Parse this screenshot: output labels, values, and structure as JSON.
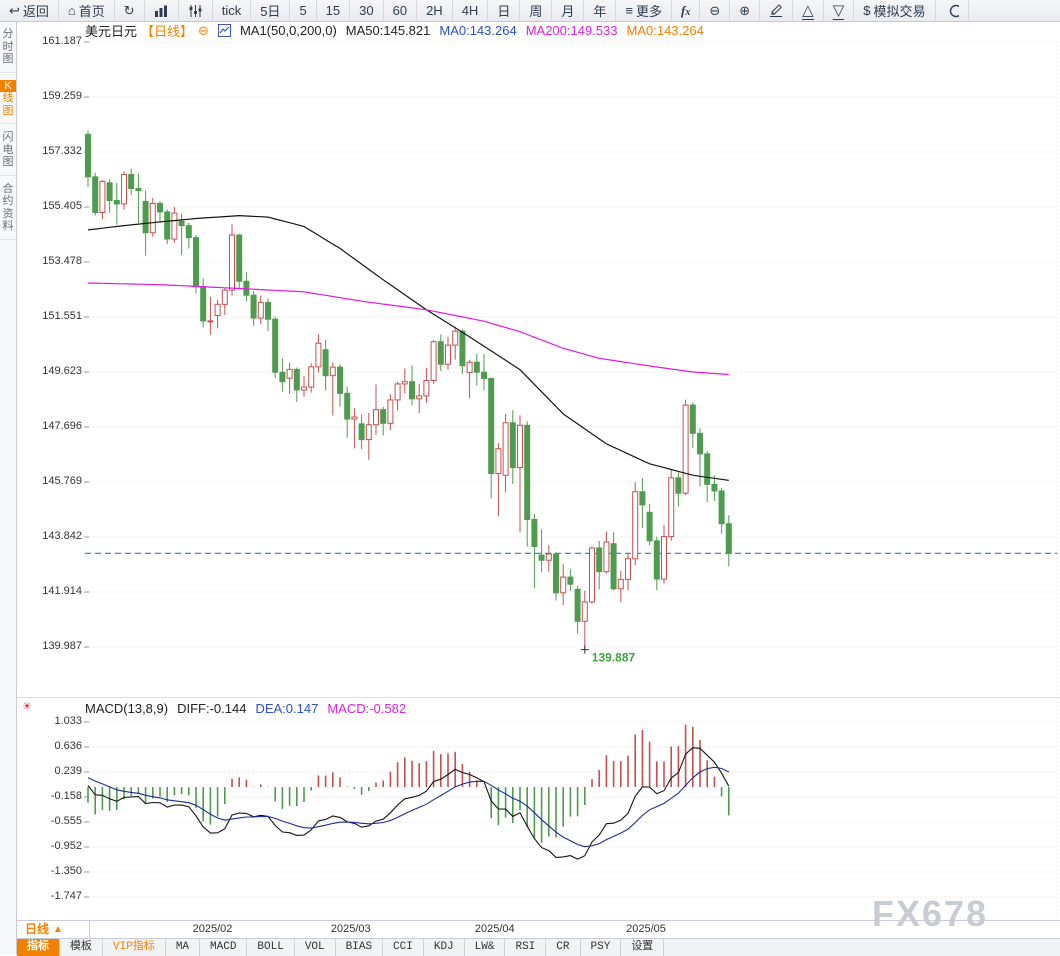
{
  "toolbar": {
    "items": [
      {
        "name": "back-button",
        "icon": "back-icon",
        "label": "返回"
      },
      {
        "name": "home-button",
        "icon": "home-icon",
        "label": "首页"
      },
      {
        "name": "refresh-button",
        "icon": "refresh-icon",
        "label": ""
      },
      {
        "name": "chart-type-button",
        "icon": "bar-chart-icon",
        "label": ""
      },
      {
        "name": "adjust-button",
        "icon": "sliders-icon",
        "label": ""
      },
      {
        "name": "tf-tick-button",
        "label": "tick"
      },
      {
        "name": "tf-5d-button",
        "label": "5日"
      },
      {
        "name": "tf-5-button",
        "label": "5"
      },
      {
        "name": "tf-15-button",
        "label": "15"
      },
      {
        "name": "tf-30-button",
        "label": "30"
      },
      {
        "name": "tf-60-button",
        "label": "60"
      },
      {
        "name": "tf-2h-button",
        "label": "2H"
      },
      {
        "name": "tf-4h-button",
        "label": "4H"
      },
      {
        "name": "tf-day-button",
        "label": "日"
      },
      {
        "name": "tf-week-button",
        "label": "周"
      },
      {
        "name": "tf-month-button",
        "label": "月"
      },
      {
        "name": "tf-year-button",
        "label": "年"
      },
      {
        "name": "more-button",
        "icon": "menu-icon",
        "label": "更多"
      },
      {
        "name": "formula-button",
        "icon": "fx-icon",
        "label": ""
      },
      {
        "name": "zoom-out-button",
        "icon": "zoom-out-icon",
        "label": ""
      },
      {
        "name": "zoom-in-button",
        "icon": "zoom-in-icon",
        "label": ""
      },
      {
        "name": "draw-button",
        "icon": "pencil-icon",
        "label": ""
      },
      {
        "name": "order-up-button",
        "icon": "triangle-up-icon",
        "label": ""
      },
      {
        "name": "order-down-button",
        "icon": "triangle-down-icon",
        "label": ""
      },
      {
        "name": "sim-trading-button",
        "icon": "dollar-icon",
        "label": "模拟交易"
      },
      {
        "name": "edge-partial-button",
        "icon": "partial-icon",
        "label": ""
      }
    ]
  },
  "sidebar": {
    "items": [
      {
        "name": "sidebar-item-timeline",
        "label": "分时图",
        "active": false
      },
      {
        "name": "sidebar-item-kline",
        "label": "K线图",
        "active": true
      },
      {
        "name": "sidebar-item-lightning",
        "label": "闪电图",
        "active": false
      },
      {
        "name": "sidebar-item-contract",
        "label": "合约资料",
        "active": false
      }
    ]
  },
  "chart_header": {
    "symbol": "美元日元",
    "period_tag": "【日线】",
    "collapse_icon": "⊖",
    "ma_settings": "MA1(50,0,200,0)",
    "ma50": "MA50:145.821",
    "ma0_blue": "MA0:143.264",
    "ma200": "MA200:149.533",
    "ma0_orange": "MA0:143.264"
  },
  "macd_header": {
    "settings_icon": "☀",
    "title": "MACD(13,8,9)",
    "diff": "DIFF:-0.144",
    "dea": "DEA:0.147",
    "macd": "MACD:-0.582"
  },
  "bottom": {
    "period_selector": "日线",
    "period_arrow": "▲",
    "tabs": [
      {
        "name": "tab-indicator",
        "label": "指标",
        "state": "active"
      },
      {
        "name": "tab-template",
        "label": "模板",
        "state": ""
      },
      {
        "name": "tab-vip",
        "label": "VIP指标",
        "state": "vip"
      },
      {
        "name": "tab-ma",
        "label": "MA",
        "state": ""
      },
      {
        "name": "tab-macd",
        "label": "MACD",
        "state": ""
      },
      {
        "name": "tab-boll",
        "label": "BOLL",
        "state": ""
      },
      {
        "name": "tab-vol",
        "label": "VOL",
        "state": ""
      },
      {
        "name": "tab-bias",
        "label": "BIAS",
        "state": ""
      },
      {
        "name": "tab-cci",
        "label": "CCI",
        "state": ""
      },
      {
        "name": "tab-kdj",
        "label": "KDJ",
        "state": ""
      },
      {
        "name": "tab-lwr",
        "label": "LW&",
        "state": ""
      },
      {
        "name": "tab-rsi",
        "label": "RSI",
        "state": ""
      },
      {
        "name": "tab-cr",
        "label": "CR",
        "state": ""
      },
      {
        "name": "tab-psy",
        "label": "PSY",
        "state": ""
      },
      {
        "name": "tab-settings",
        "label": "设置",
        "state": ""
      }
    ]
  },
  "watermark": "FX678",
  "chart_data": {
    "type": "candlestick",
    "title": "美元日元 日线 (USD/JPY daily)",
    "price_axis_labels": [
      161.187,
      159.259,
      157.332,
      155.405,
      153.478,
      151.551,
      149.623,
      147.696,
      145.769,
      143.842,
      141.914,
      139.987
    ],
    "current_price": 143.264,
    "low_marker": {
      "index": 69,
      "value": 139.887,
      "label": "139.887"
    },
    "x_labels": [
      {
        "text": "2025/02",
        "index": 17.3
      },
      {
        "text": "2025/03",
        "index": 36.5
      },
      {
        "text": "2025/04",
        "index": 56.5
      },
      {
        "text": "2025/05",
        "index": 77.5
      }
    ],
    "ohlc": [
      [
        157.95,
        158.08,
        156.1,
        156.46
      ],
      [
        156.46,
        156.6,
        155.1,
        155.21
      ],
      [
        155.21,
        156.35,
        154.98,
        156.3
      ],
      [
        156.25,
        156.37,
        155.2,
        155.63
      ],
      [
        155.63,
        156.25,
        154.78,
        155.51
      ],
      [
        155.51,
        156.66,
        155.31,
        156.54
      ],
      [
        156.54,
        156.75,
        155.82,
        156.05
      ],
      [
        156.05,
        156.57,
        154.84,
        155.98
      ],
      [
        155.6,
        155.98,
        153.7,
        154.5
      ],
      [
        154.5,
        155.72,
        154.36,
        155.53
      ],
      [
        155.53,
        155.61,
        154.91,
        155.23
      ],
      [
        155.23,
        155.32,
        154.1,
        154.28
      ],
      [
        154.28,
        155.4,
        154.15,
        155.19
      ],
      [
        154.9,
        155.17,
        153.72,
        154.75
      ],
      [
        154.75,
        154.85,
        153.95,
        154.33
      ],
      [
        154.33,
        154.42,
        152.38,
        152.61
      ],
      [
        152.61,
        152.9,
        151.18,
        151.41
      ],
      [
        151.41,
        152.25,
        150.93,
        151.41
      ],
      [
        151.6,
        152.15,
        151.15,
        151.99
      ],
      [
        151.99,
        152.55,
        151.62,
        152.49
      ],
      [
        152.49,
        154.8,
        152.3,
        154.42
      ],
      [
        154.42,
        154.46,
        152.55,
        152.8
      ],
      [
        152.8,
        153.13,
        152.1,
        152.31
      ],
      [
        152.31,
        152.45,
        151.24,
        151.51
      ],
      [
        151.51,
        152.3,
        151.3,
        152.06
      ],
      [
        152.06,
        152.2,
        151.05,
        151.47
      ],
      [
        151.47,
        151.56,
        149.4,
        149.61
      ],
      [
        149.61,
        150.1,
        148.93,
        149.28
      ],
      [
        149.4,
        149.95,
        148.85,
        149.71
      ],
      [
        149.71,
        149.78,
        148.57,
        148.99
      ],
      [
        148.99,
        149.48,
        148.75,
        149.09
      ],
      [
        149.09,
        149.92,
        148.9,
        149.8
      ],
      [
        149.8,
        150.95,
        149.6,
        150.63
      ],
      [
        150.4,
        150.75,
        148.98,
        149.49
      ],
      [
        149.49,
        149.95,
        148.09,
        149.79
      ],
      [
        149.79,
        149.89,
        148.4,
        148.87
      ],
      [
        148.87,
        149.1,
        147.31,
        147.97
      ],
      [
        147.97,
        148.35,
        146.94,
        148.04
      ],
      [
        147.8,
        148.13,
        146.92,
        147.25
      ],
      [
        147.25,
        148.18,
        146.54,
        147.77
      ],
      [
        147.77,
        149.18,
        147.42,
        148.3
      ],
      [
        148.3,
        148.39,
        147.4,
        147.82
      ],
      [
        147.82,
        148.84,
        147.58,
        148.64
      ],
      [
        148.64,
        149.27,
        148.27,
        149.2
      ],
      [
        149.2,
        149.75,
        148.87,
        149.28
      ],
      [
        149.28,
        149.85,
        148.45,
        148.68
      ],
      [
        148.68,
        149.2,
        148.18,
        148.78
      ],
      [
        148.78,
        149.77,
        148.53,
        149.32
      ],
      [
        149.32,
        150.74,
        149.2,
        150.68
      ],
      [
        150.68,
        150.94,
        149.65,
        149.89
      ],
      [
        149.89,
        150.85,
        149.7,
        150.56
      ],
      [
        150.56,
        151.21,
        150.05,
        151.05
      ],
      [
        151.05,
        151.12,
        149.55,
        149.84
      ],
      [
        149.6,
        150.05,
        148.7,
        149.96
      ],
      [
        149.96,
        150.25,
        149.14,
        149.61
      ],
      [
        149.61,
        150.25,
        148.98,
        149.39
      ],
      [
        149.39,
        149.42,
        145.19,
        146.06
      ],
      [
        146.06,
        147.12,
        144.56,
        146.93
      ],
      [
        146.0,
        148.15,
        145.4,
        147.84
      ],
      [
        147.84,
        148.28,
        145.7,
        146.27
      ],
      [
        146.27,
        148.1,
        144.0,
        147.75
      ],
      [
        147.75,
        147.9,
        143.5,
        144.45
      ],
      [
        144.45,
        144.65,
        142.05,
        143.5
      ],
      [
        143.2,
        144.1,
        142.6,
        143.02
      ],
      [
        143.02,
        143.55,
        142.62,
        143.24
      ],
      [
        143.24,
        143.3,
        141.61,
        141.88
      ],
      [
        141.88,
        142.9,
        141.45,
        142.43
      ],
      [
        142.43,
        142.7,
        141.95,
        142.18
      ],
      [
        142.0,
        142.12,
        140.45,
        140.88
      ],
      [
        140.88,
        141.95,
        139.887,
        141.56
      ],
      [
        141.56,
        143.5,
        141.5,
        143.45
      ],
      [
        143.45,
        143.7,
        142.0,
        142.62
      ],
      [
        142.62,
        144.03,
        142.55,
        143.66
      ],
      [
        143.6,
        144.0,
        141.97,
        142.02
      ],
      [
        142.02,
        142.65,
        141.55,
        142.35
      ],
      [
        142.35,
        143.25,
        141.96,
        143.07
      ],
      [
        143.07,
        145.75,
        142.85,
        145.42
      ],
      [
        145.42,
        145.9,
        144.15,
        144.96
      ],
      [
        144.7,
        145.0,
        143.55,
        143.7
      ],
      [
        143.7,
        143.85,
        141.97,
        142.36
      ],
      [
        142.36,
        144.25,
        142.2,
        143.85
      ],
      [
        143.85,
        146.18,
        143.7,
        145.91
      ],
      [
        145.91,
        146.1,
        144.9,
        145.37
      ],
      [
        145.37,
        148.65,
        145.3,
        148.46
      ],
      [
        148.46,
        148.55,
        146.95,
        147.47
      ],
      [
        147.47,
        147.65,
        145.6,
        146.75
      ],
      [
        146.75,
        146.85,
        145.05,
        145.68
      ],
      [
        145.68,
        146.0,
        145.1,
        145.45
      ],
      [
        145.45,
        145.55,
        143.95,
        144.3
      ],
      [
        144.3,
        144.6,
        142.8,
        143.26
      ]
    ],
    "ma50_points": [
      [
        0,
        154.6
      ],
      [
        5,
        154.75
      ],
      [
        10,
        154.88
      ],
      [
        15,
        155.0
      ],
      [
        21,
        155.1
      ],
      [
        25,
        155.05
      ],
      [
        30,
        154.72
      ],
      [
        35,
        153.95
      ],
      [
        41,
        152.85
      ],
      [
        47,
        151.8
      ],
      [
        53,
        150.85
      ],
      [
        60,
        149.7
      ],
      [
        66,
        148.15
      ],
      [
        72,
        147.1
      ],
      [
        78,
        146.4
      ],
      [
        84,
        146.0
      ],
      [
        89,
        145.82
      ]
    ],
    "ma200_points": [
      [
        0,
        152.74
      ],
      [
        10,
        152.68
      ],
      [
        20,
        152.56
      ],
      [
        30,
        152.43
      ],
      [
        38,
        152.1
      ],
      [
        47,
        151.8
      ],
      [
        55,
        151.4
      ],
      [
        60,
        151.03
      ],
      [
        66,
        150.45
      ],
      [
        71,
        150.1
      ],
      [
        78,
        149.83
      ],
      [
        84,
        149.62
      ],
      [
        89,
        149.53
      ]
    ],
    "macd": {
      "fast": 8,
      "slow": 13,
      "signal": 9,
      "warmup_closes": [
        156.2,
        156.9,
        157.6,
        158.1,
        158.3,
        157.9,
        157.5,
        157.7,
        157.0,
        156.6
      ],
      "axis_labels": [
        1.033,
        0.636,
        0.239,
        -0.158,
        -0.555,
        -0.952,
        -1.35,
        -1.747
      ],
      "diff_last": -0.144,
      "dea_last": 0.147,
      "hist_last": -0.582
    },
    "colors": {
      "up": "#c94f4f",
      "down": "#4f9b4f",
      "ma50": "#151515",
      "ma200": "#e319e3",
      "price_line": "#1a7bd9",
      "diff": "#151515",
      "dea": "#1b2d9b",
      "grid": "#d8d8de",
      "low_label": "#3fa43f",
      "accent": "#f28100"
    }
  }
}
